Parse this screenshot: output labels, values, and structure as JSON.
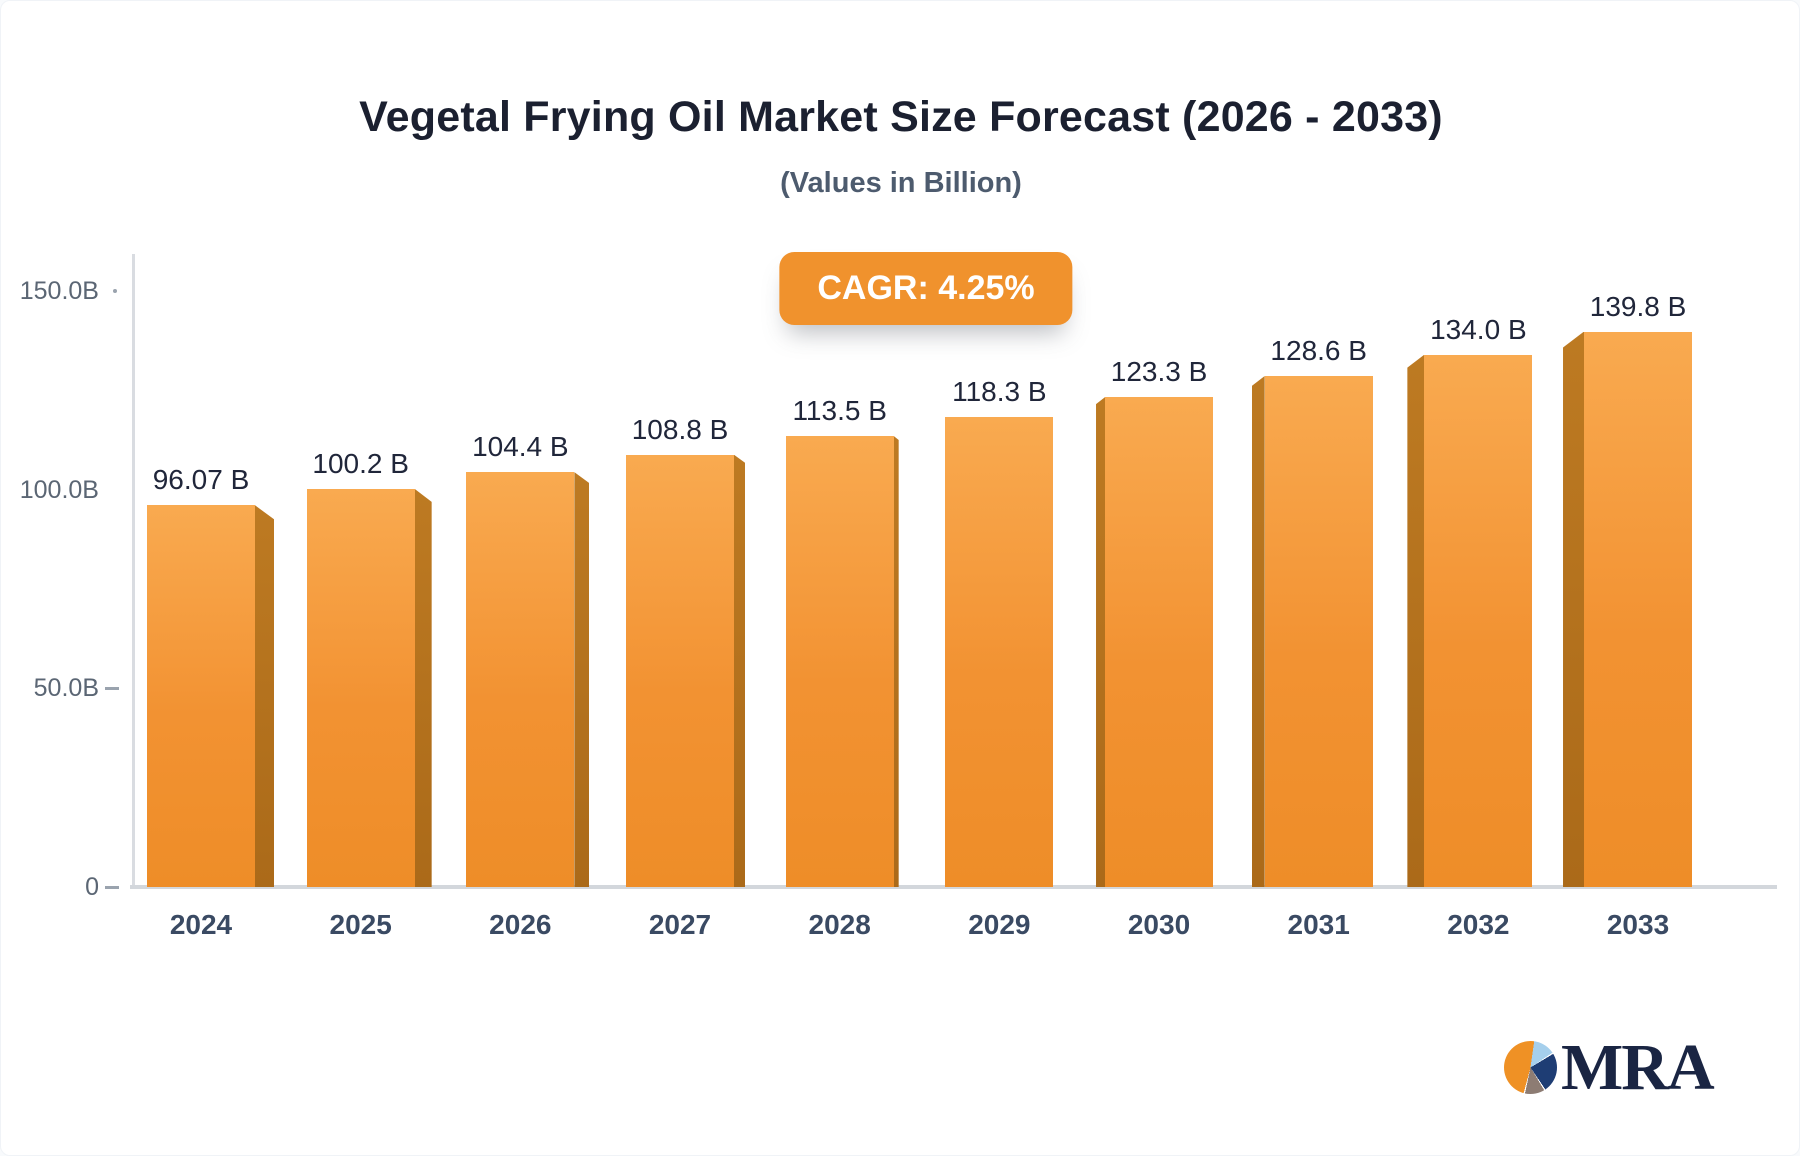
{
  "title": "Vegetal Frying Oil Market Size Forecast (2026 - 2033)",
  "subtitle": "(Values in Billion)",
  "badge": {
    "label": "CAGR: 4.25%"
  },
  "logo": {
    "text": "MRA",
    "icon": "pie-chart-icon"
  },
  "colors": {
    "accent_orange": "#f0922d",
    "bar_face": "#f29232",
    "bar_side_shadow": "#ab6a19",
    "title_text": "#1b2030",
    "subtitle_text": "#4d5b6e",
    "axis_text": "#5b6674",
    "logo_navy": "#1a2543"
  },
  "chart_data": {
    "type": "bar",
    "title": "Vegetal Frying Oil Market Size Forecast (2026 - 2033)",
    "subtitle": "(Values in Billion)",
    "unit": "Billion",
    "categories": [
      "2024",
      "2025",
      "2026",
      "2027",
      "2028",
      "2029",
      "2030",
      "2031",
      "2032",
      "2033"
    ],
    "values": [
      96.07,
      100.2,
      104.4,
      108.8,
      113.5,
      118.3,
      123.3,
      128.6,
      134.0,
      139.8
    ],
    "value_labels": [
      "96.07 B",
      "100.2 B",
      "104.4 B",
      "108.8 B",
      "113.5 B",
      "118.3 B",
      "123.3 B",
      "128.6 B",
      "134.0 B",
      "139.8 B"
    ],
    "annotation": "CAGR: 4.25%",
    "ylim": [
      0,
      150
    ],
    "y_axis": {
      "ticks": [
        {
          "label": "150.0B",
          "value": 150,
          "mark": "dot"
        },
        {
          "label": "100.0B",
          "value": 100,
          "mark": "none"
        },
        {
          "label": "50.0B",
          "value": 50,
          "mark": "dash"
        },
        {
          "label": "0",
          "value": 0,
          "mark": "dash"
        }
      ]
    },
    "grid": false,
    "legend": false,
    "bar_style": "3d-extruded-orange"
  }
}
